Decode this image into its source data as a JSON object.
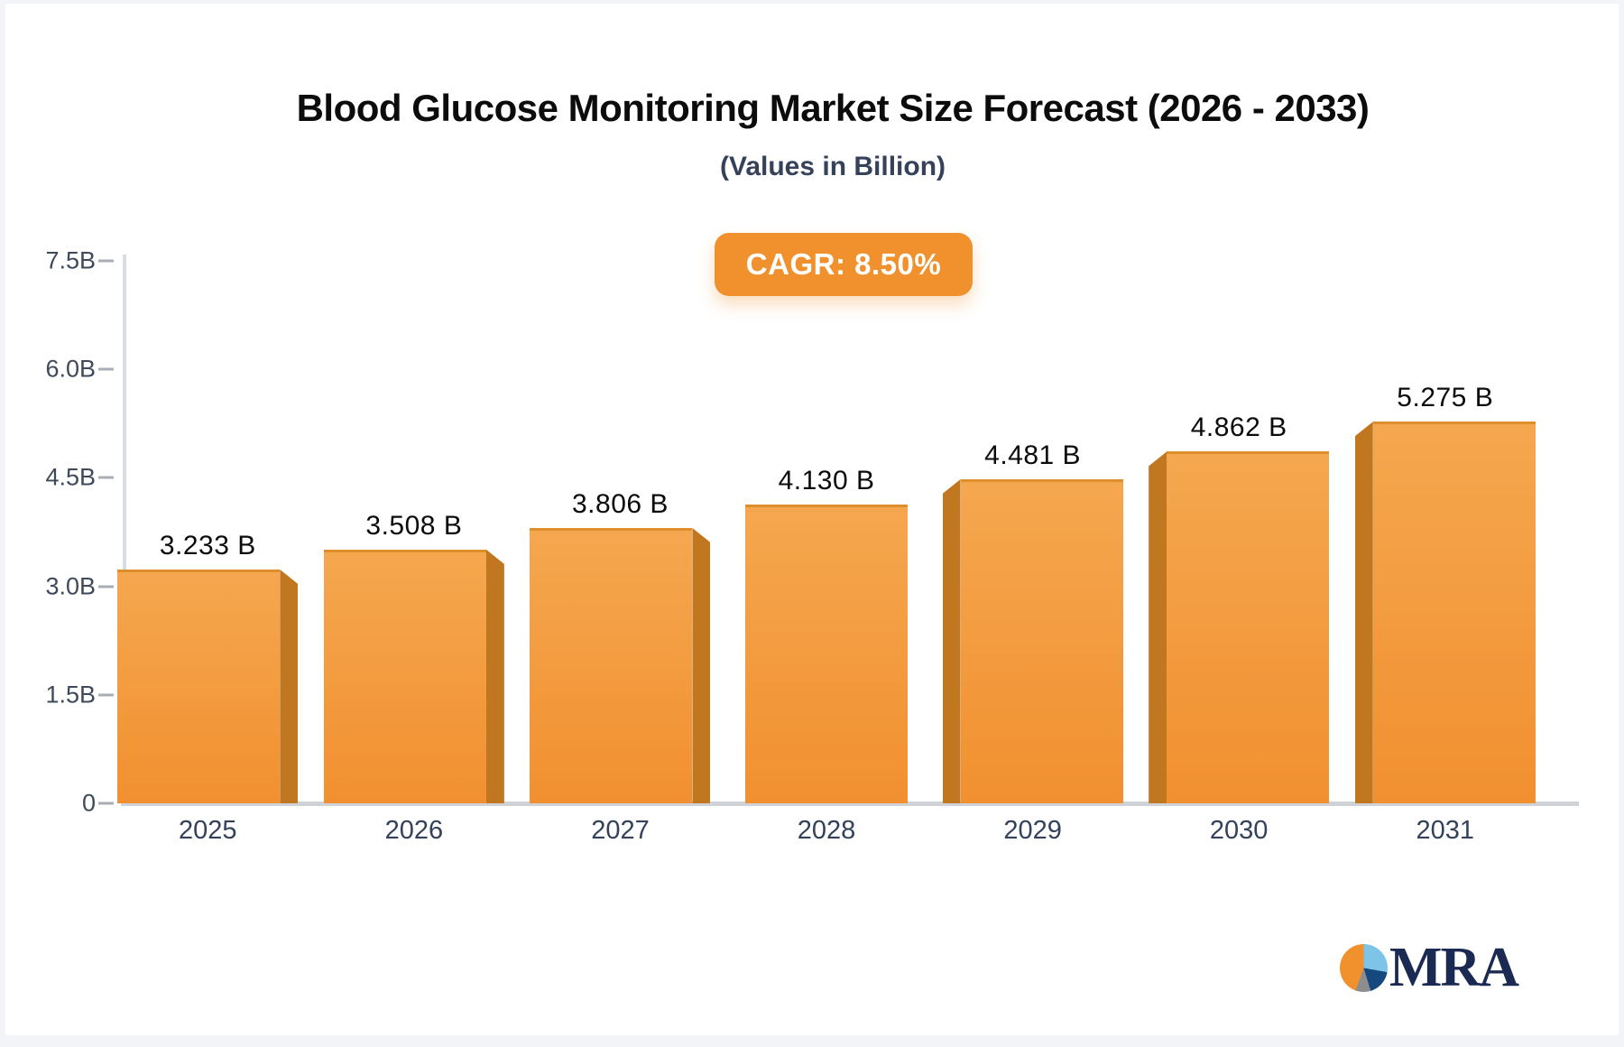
{
  "title": "Blood Glucose Monitoring Market Size Forecast (2026 - 2033)",
  "subtitle": "(Values in Billion)",
  "badge": {
    "label": "CAGR: 8.50%"
  },
  "chart_data": {
    "type": "bar",
    "categories": [
      "2025",
      "2026",
      "2027",
      "2028",
      "2029",
      "2030",
      "2031"
    ],
    "values": [
      3.233,
      3.508,
      3.806,
      4.13,
      4.481,
      4.862,
      5.275
    ],
    "value_labels": [
      "3.233 B",
      "3.508 B",
      "3.806 B",
      "4.130 B",
      "4.481 B",
      "4.862 B",
      "5.275 B"
    ],
    "ytick_labels": [
      "7.5B",
      "6.0B",
      "4.5B",
      "3.0B",
      "1.5B",
      "0"
    ],
    "ytick_values": [
      7.5,
      6.0,
      4.5,
      3.0,
      1.5,
      0
    ],
    "ylim": [
      0,
      7.5
    ],
    "grid": false,
    "legend": false,
    "bar_style": "3d-perspective-orange"
  },
  "logo": {
    "text": "MRA",
    "pie_colors": [
      "#f0912d",
      "#7ec3e8",
      "#15497e",
      "#8d8d8d"
    ]
  },
  "colors": {
    "accent": "#f0912d",
    "bar_top": "#f5a74f",
    "bar_bottom": "#f19030",
    "bar_side": "#c1771f",
    "bar_edge": "#de8e2b",
    "axis": "#d9dce1",
    "tick": "#a7aeb6"
  }
}
